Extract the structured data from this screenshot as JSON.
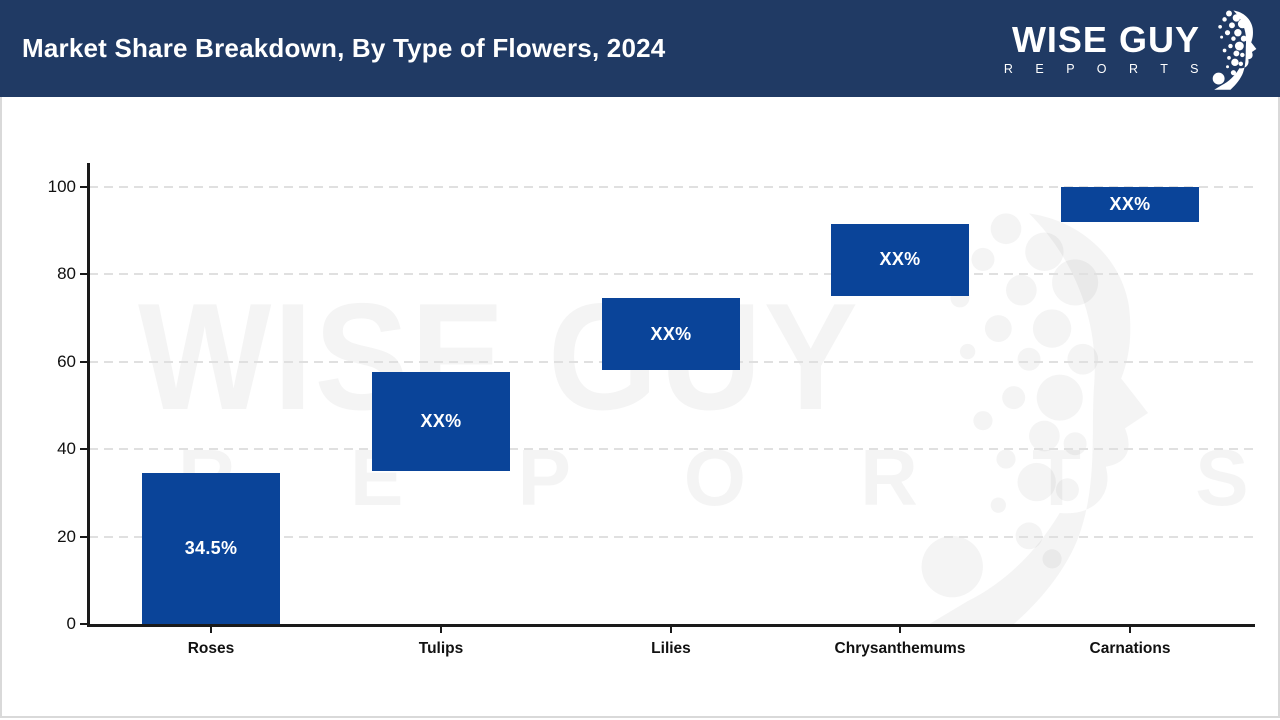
{
  "header": {
    "title": "Market Share Breakdown, By Type of Flowers, 2024",
    "logo": {
      "line1": "WISE GUY",
      "line2": "R E P O R T S"
    }
  },
  "watermark": {
    "line1": "WISE GUY",
    "line2": "R E P O R T S"
  },
  "colors": {
    "header_bg": "#203a64",
    "bar": "#0a4499",
    "grid": "#e0e0e0",
    "axis": "#1a1a1a",
    "bar_label": "#ffffff"
  },
  "chart_data": {
    "type": "bar",
    "subtype": "floating-waterfall",
    "title": "Market Share Breakdown, By Type of Flowers, 2024",
    "xlabel": "",
    "ylabel": "",
    "ylim": [
      0,
      105
    ],
    "grid": "dashed-horizontal",
    "y_ticks": [
      0,
      20,
      40,
      60,
      80,
      100
    ],
    "categories": [
      "Roses",
      "Tulips",
      "Lilies",
      "Chrysanthemums",
      "Carnations"
    ],
    "segments": [
      {
        "category": "Roses",
        "start": 0,
        "end": 34.5,
        "label": "34.5%"
      },
      {
        "category": "Tulips",
        "start": 35,
        "end": 57.5,
        "label": "XX%"
      },
      {
        "category": "Lilies",
        "start": 58,
        "end": 74.5,
        "label": "XX%"
      },
      {
        "category": "Chrysanthemums",
        "start": 75,
        "end": 91.5,
        "label": "XX%"
      },
      {
        "category": "Carnations",
        "start": 92,
        "end": 100,
        "label": "XX%"
      }
    ]
  }
}
